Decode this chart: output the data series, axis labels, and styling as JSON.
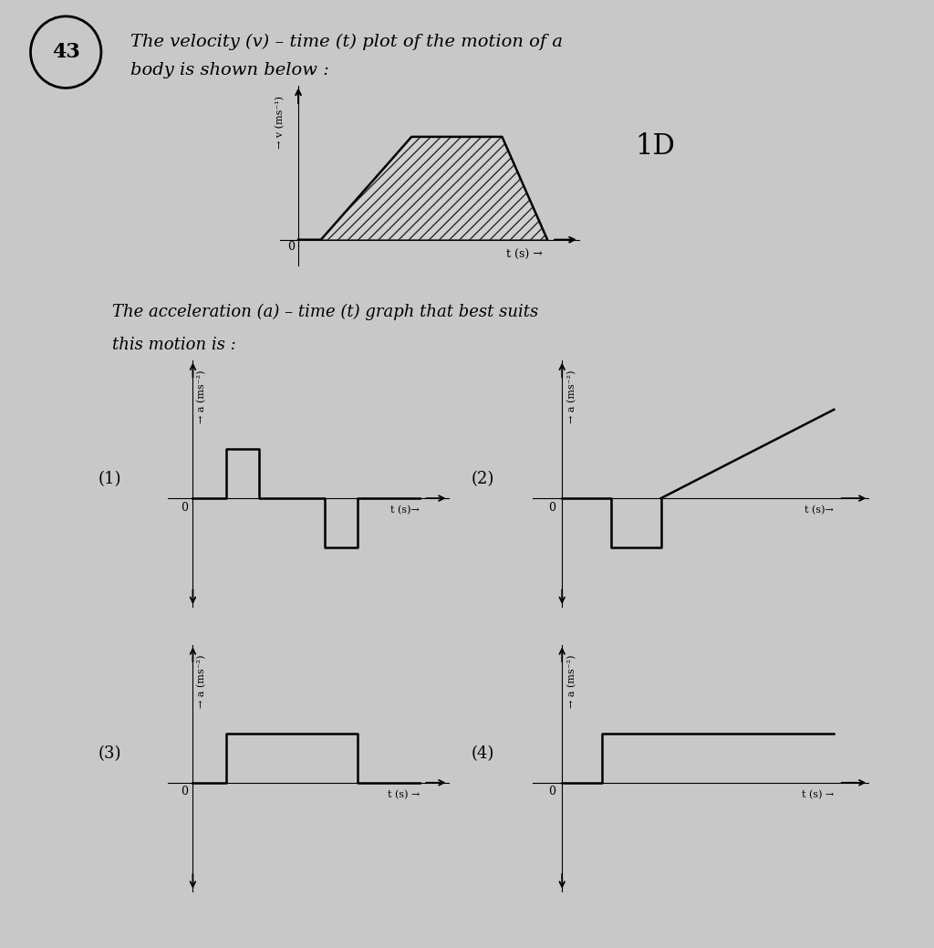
{
  "bg_color": "#c8c8c8",
  "title_num": "43",
  "title_line1": "The velocity (v) – time (t) plot of the motion of a",
  "title_line2": "body is shown below :",
  "marker": "1D",
  "subtitle_line1": "The acceleration (a) – time (t) graph that best suits",
  "subtitle_line2": "this motion is :",
  "vt": {
    "t": [
      0.0,
      0.5,
      2.5,
      4.5,
      5.5
    ],
    "v": [
      0.0,
      0.0,
      2.0,
      2.0,
      0.0
    ],
    "hatch": "///",
    "xlabel": "t (s) →",
    "ylabel": "→ v (ms⁻¹)"
  },
  "graph1": {
    "label": "(1)",
    "t": [
      0,
      0.8,
      0.8,
      1.6,
      1.6,
      3.2,
      3.2,
      4.0,
      4.0,
      5.5
    ],
    "a": [
      0,
      0,
      1,
      1,
      0,
      0,
      -1,
      -1,
      0,
      0
    ],
    "xlabel": "t (s)→",
    "ylabel": "→ a (ms⁻²)"
  },
  "graph2": {
    "label": "(2)",
    "t_box": [
      0,
      1.0,
      1.0,
      2.0,
      2.0
    ],
    "a_box": [
      0,
      0,
      -1,
      -1,
      0
    ],
    "t_line": [
      2.0,
      5.5
    ],
    "a_line": [
      0.0,
      1.8
    ],
    "xlabel": "t (s)→",
    "ylabel": "→ a (ms⁻²)"
  },
  "graph3": {
    "label": "(3)",
    "t": [
      0,
      0.8,
      0.8,
      1.6,
      3.2,
      4.0,
      4.0,
      5.5
    ],
    "a": [
      0,
      0,
      1,
      1,
      1,
      1,
      0,
      0
    ],
    "xlabel": "t (s) →",
    "ylabel": "→ a (ms⁻²)"
  },
  "graph4": {
    "label": "(4)",
    "t": [
      0,
      0.8,
      0.8,
      1.6,
      1.6,
      3.5,
      3.5,
      5.5
    ],
    "a": [
      0,
      0,
      1,
      1,
      1,
      1,
      1,
      1
    ],
    "xlabel": "t (s) →",
    "ylabel": "→ a (ms⁻²)"
  }
}
